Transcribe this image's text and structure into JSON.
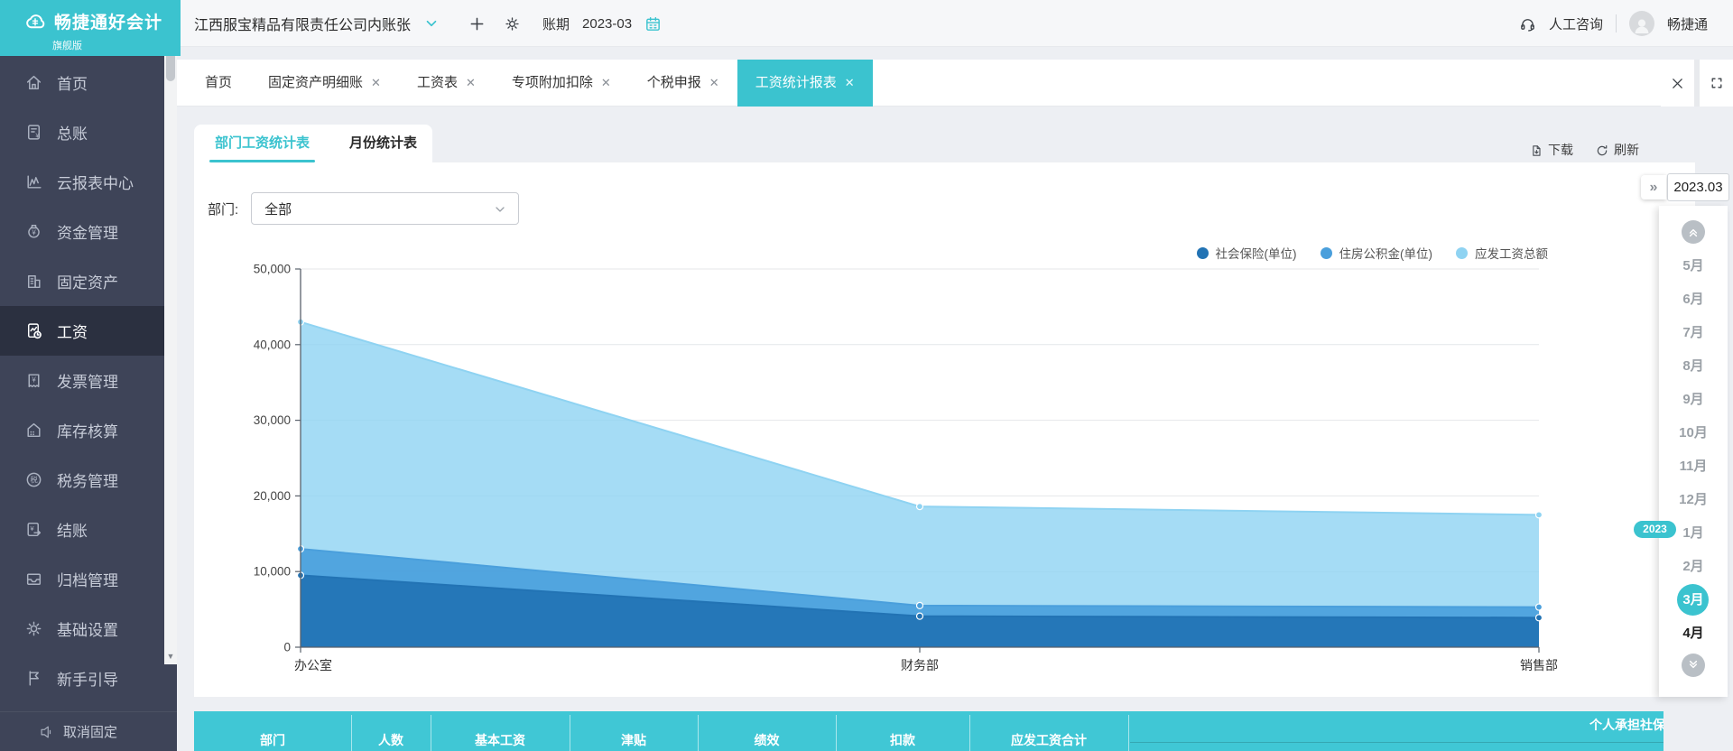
{
  "colors": {
    "accent": "#3bc3cf",
    "table_header": "#40c7d5",
    "sidebar_bg": "#3e4458",
    "sidebar_active_bg": "#2b3040"
  },
  "brand": {
    "name": "畅捷通好会计",
    "edition": "旗舰版"
  },
  "topbar": {
    "company": "江西服宝精品有限责任公司内账张",
    "period_label": "账期",
    "period_value": "2023-03",
    "consult_label": "人工咨询",
    "user_name": "畅捷通"
  },
  "sidebar": {
    "items": [
      {
        "label": "首页",
        "icon": "home",
        "active": false
      },
      {
        "label": "总账",
        "icon": "ledger",
        "active": false
      },
      {
        "label": "云报表中心",
        "icon": "report",
        "active": false
      },
      {
        "label": "资金管理",
        "icon": "fund",
        "active": false
      },
      {
        "label": "固定资产",
        "icon": "asset",
        "active": false
      },
      {
        "label": "工资",
        "icon": "salary",
        "active": true
      },
      {
        "label": "发票管理",
        "icon": "invoice",
        "active": false
      },
      {
        "label": "库存核算",
        "icon": "inventory",
        "active": false
      },
      {
        "label": "税务管理",
        "icon": "tax",
        "active": false
      },
      {
        "label": "结账",
        "icon": "closing",
        "active": false
      },
      {
        "label": "归档管理",
        "icon": "archive",
        "active": false
      },
      {
        "label": "基础设置",
        "icon": "settings",
        "active": false
      },
      {
        "label": "新手引导",
        "icon": "guide",
        "active": false
      }
    ],
    "pin_label": "取消固定"
  },
  "tabs": [
    {
      "label": "首页",
      "closable": false,
      "active": false
    },
    {
      "label": "固定资产明细账",
      "closable": true,
      "active": false
    },
    {
      "label": "工资表",
      "closable": true,
      "active": false
    },
    {
      "label": "专项附加扣除",
      "closable": true,
      "active": false
    },
    {
      "label": "个税申报",
      "closable": true,
      "active": false
    },
    {
      "label": "工资统计报表",
      "closable": true,
      "active": true
    }
  ],
  "subtabs": [
    "部门工资统计表",
    "月份统计表"
  ],
  "toolbar": {
    "download_label": "下载",
    "refresh_label": "刷新"
  },
  "filter": {
    "label": "部门:",
    "value": "全部"
  },
  "chart_data": {
    "type": "area",
    "categories": [
      "办公室",
      "财务部",
      "销售部"
    ],
    "series": [
      {
        "name": "社会保险(单位)",
        "color": "#2273b4",
        "values": [
          9500,
          4100,
          3900
        ]
      },
      {
        "name": "住房公积金(单位)",
        "color": "#4a9fdc",
        "values": [
          13000,
          5500,
          5300
        ]
      },
      {
        "name": "应发工资总额",
        "color": "#8fd3f2",
        "values": [
          43000,
          18600,
          17500
        ]
      }
    ],
    "ylim": [
      0,
      50000
    ],
    "ytick_step": 10000,
    "grid": true,
    "legend_position": "top-right"
  },
  "month_panel": {
    "display": "2023.03",
    "year_badge": "2023",
    "months": [
      "5月",
      "6月",
      "7月",
      "8月",
      "9月",
      "10月",
      "11月",
      "12月",
      "1月",
      "2月",
      "3月",
      "4月"
    ],
    "active_month": "3月",
    "current_month": "4月"
  },
  "table": {
    "columns": [
      "部门",
      "人数",
      "基本工资",
      "津贴",
      "绩效",
      "扣款",
      "应发工资合计"
    ],
    "group_header": "个人承担社保合计"
  }
}
